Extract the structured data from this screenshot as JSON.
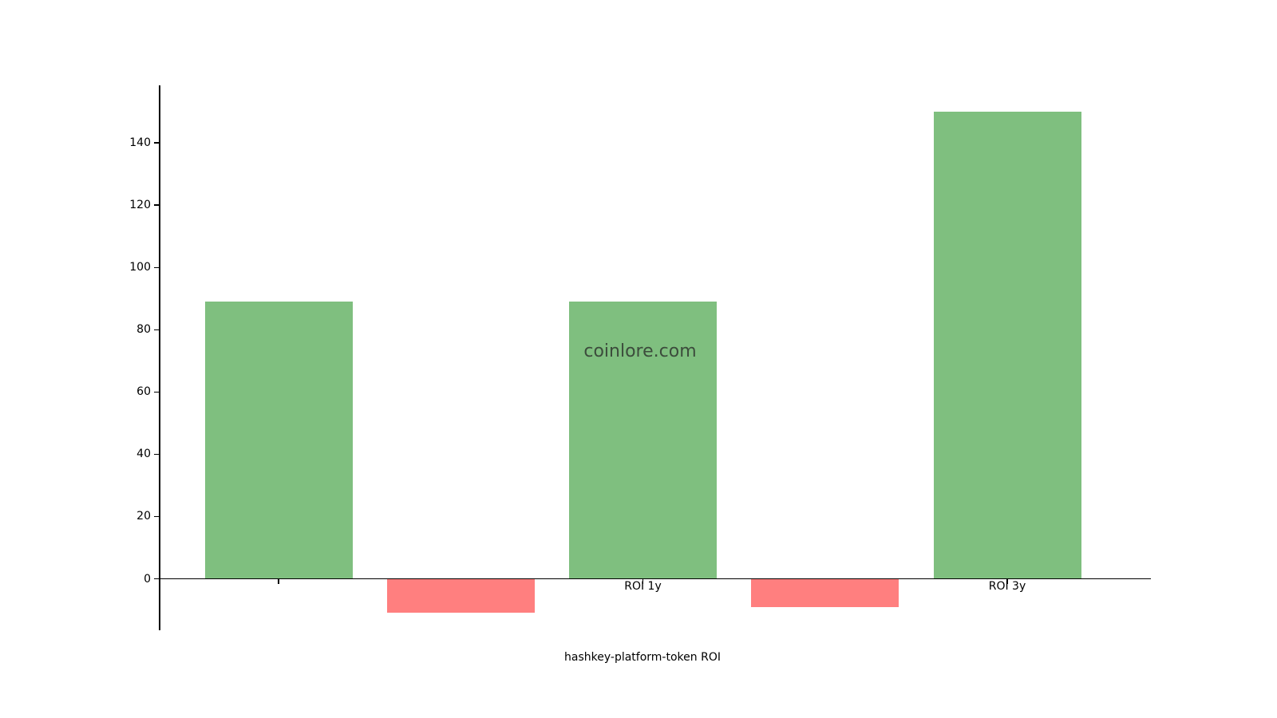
{
  "chart_data": {
    "type": "bar",
    "title": "hashkey-platform-token ROI",
    "watermark": "coinlore.com",
    "values": [
      89,
      -11,
      89,
      -9,
      150
    ],
    "bar_count": 5,
    "xticks": [
      {
        "bar_index": 0,
        "label": ""
      },
      {
        "bar_index": 2,
        "label": "ROI 1y"
      },
      {
        "bar_index": 4,
        "label": "ROI 3y"
      }
    ],
    "ytick_values": [
      0,
      20,
      40,
      60,
      80,
      100,
      120,
      140
    ],
    "ylim": [
      -16.5,
      158.5
    ],
    "grid": false,
    "legend": false,
    "colors": {
      "positive_bar": "#7fbf7f",
      "negative_bar": "#ff7f7f",
      "axis": "#000000",
      "watermark_text": "#2d322d"
    }
  }
}
